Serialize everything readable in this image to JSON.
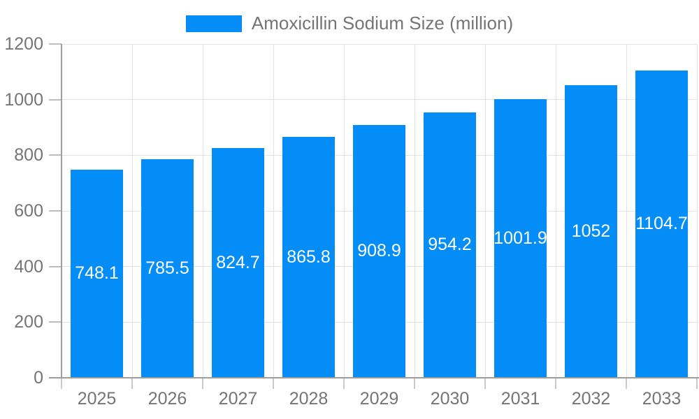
{
  "legend": {
    "label": "Amoxicillin Sodium Size (million)"
  },
  "chart_data": {
    "type": "bar",
    "title": "",
    "xlabel": "",
    "ylabel": "",
    "series_name": "Amoxicillin Sodium Size (million)",
    "categories": [
      "2025",
      "2026",
      "2027",
      "2028",
      "2029",
      "2030",
      "2031",
      "2032",
      "2033"
    ],
    "values": [
      748.1,
      785.5,
      824.7,
      865.8,
      908.9,
      954.2,
      1001.9,
      1052,
      1104.7
    ],
    "data_labels_shown": true,
    "ylim": [
      0,
      1200
    ],
    "y_ticks": [
      0,
      200,
      400,
      600,
      800,
      1000,
      1200
    ],
    "grid": true,
    "legend_position": "top-center",
    "colors": {
      "bar": "#058df7",
      "bar_label_text": "#ffffff",
      "axis_text": "#757575",
      "grid_line": "#e3e3e3",
      "axis_line": "#9e9e9e"
    }
  }
}
